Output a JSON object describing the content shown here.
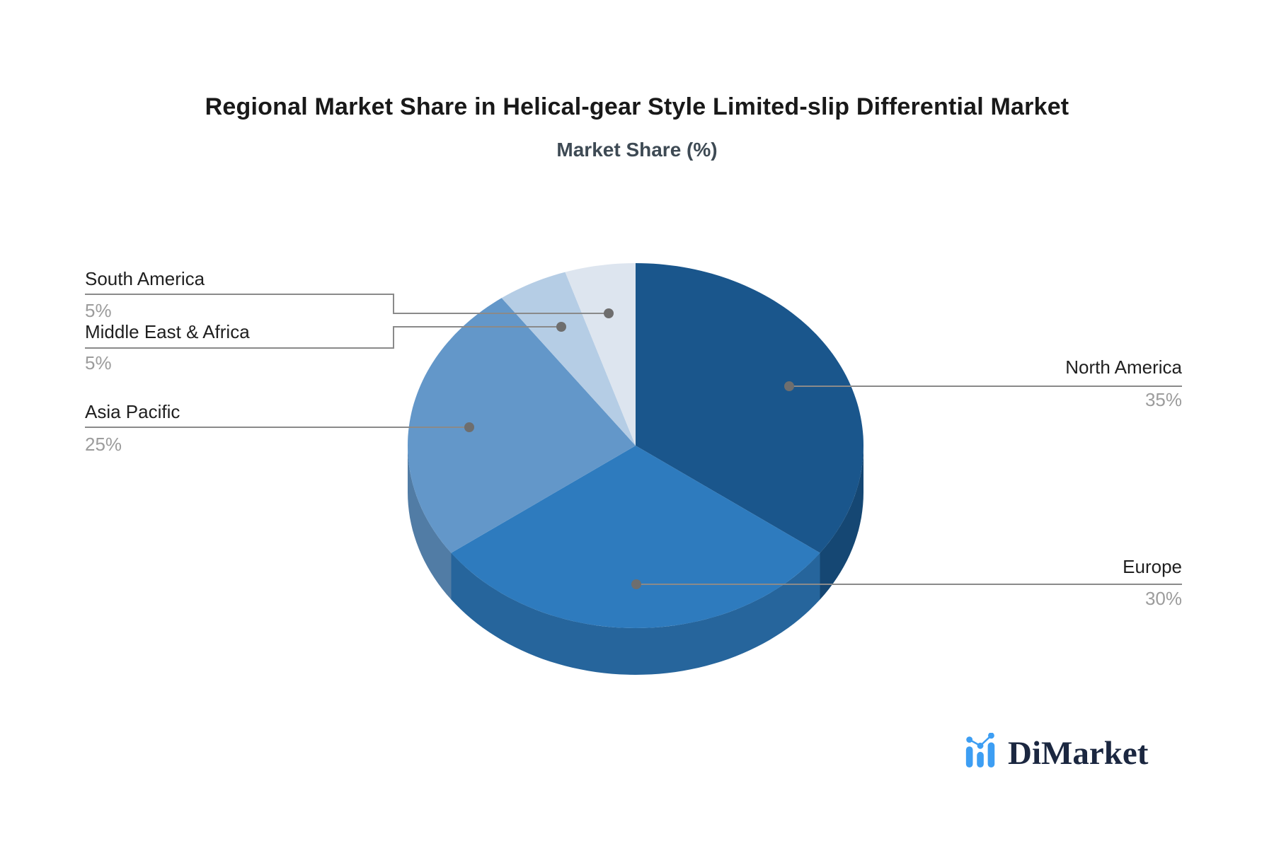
{
  "page": {
    "background": "#ffffff"
  },
  "chart_data": {
    "type": "pie",
    "style": "3d",
    "title": "Regional Market Share in Helical-gear Style Limited-slip Differential Market",
    "subtitle": "Market Share (%)",
    "legend_position": "none",
    "grid": false,
    "slices": [
      {
        "label": "North America",
        "value": 35,
        "value_label": "35%",
        "color": "#1a568c"
      },
      {
        "label": "Europe",
        "value": 30,
        "value_label": "30%",
        "color": "#2e7bbe"
      },
      {
        "label": "Asia Pacific",
        "value": 25,
        "value_label": "25%",
        "color": "#6397c9"
      },
      {
        "label": "Middle East & Africa",
        "value": 5,
        "value_label": "5%",
        "color": "#b5cde5"
      },
      {
        "label": "South America",
        "value": 5,
        "value_label": "5%",
        "color": "#dde5ef"
      }
    ],
    "leader_line_color": "#8a8a8a",
    "leader_dot_color": "#6e6e6e",
    "label_color": "#1f1f1f",
    "value_color": "#9c9c9c"
  },
  "branding": {
    "logo_text": "DiMarket",
    "logo_text_color": "#1b2740",
    "logo_icon_color": "#3d9ef3"
  }
}
